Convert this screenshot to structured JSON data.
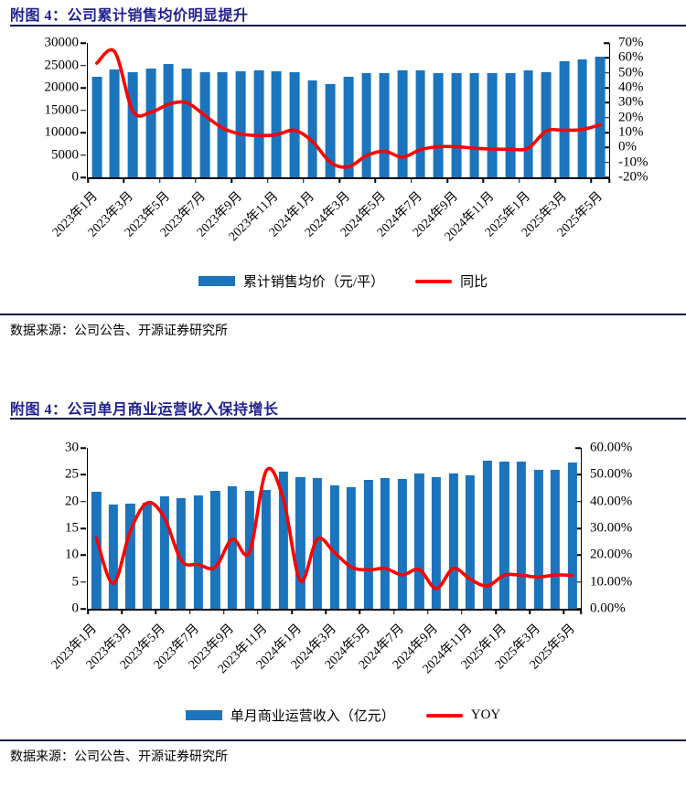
{
  "figure1": {
    "title": "附图 4：公司累计销售均价明显提升",
    "legend_bar": "累计销售均价（元/平）",
    "legend_line": "同比",
    "source": "数据来源：公司公告、开源证券研究所"
  },
  "figure2": {
    "title": "附图 4：公司单月商业运营收入保持增长",
    "legend_bar": "单月商业运营收入（亿元）",
    "legend_line": "YOY",
    "source": "数据来源：公司公告、开源证券研究所"
  },
  "colors": {
    "bar": "#1b74bc",
    "line": "#fe0000",
    "title": "#1f1f8f",
    "rule": "#14144e",
    "axis": "#000000"
  },
  "chart_data": [
    {
      "type": "bar",
      "subtype": "bar+line combo, dual axis",
      "title": "附图 4：公司累计销售均价明显提升",
      "grid": false,
      "legend_position": "bottom",
      "categories": [
        "2023年1月",
        "2023年2月",
        "2023年3月",
        "2023年4月",
        "2023年5月",
        "2023年6月",
        "2023年7月",
        "2023年8月",
        "2023年9月",
        "2023年10月",
        "2023年11月",
        "2023年12月",
        "2024年1月",
        "2024年2月",
        "2024年3月",
        "2024年4月",
        "2024年5月",
        "2024年6月",
        "2024年7月",
        "2024年8月",
        "2024年9月",
        "2024年10月",
        "2024年11月",
        "2024年12月",
        "2025年1月",
        "2025年2月",
        "2025年3月",
        "2025年4月",
        "2025年5月"
      ],
      "x_tick_labels_shown": [
        "2023年1月",
        "2023年3月",
        "2023年5月",
        "2023年7月",
        "2023年9月",
        "2023年11月",
        "2024年1月",
        "2024年3月",
        "2024年5月",
        "2024年7月",
        "2024年9月",
        "2024年11月",
        "2025年1月",
        "2025年3月",
        "2025年5月"
      ],
      "y_left": {
        "label": "累计销售均价（元/平）",
        "min": 0,
        "max": 30000,
        "step": 5000,
        "tick_labels": [
          "30000",
          "25000",
          "20000",
          "15000",
          "10000",
          "5000",
          "0"
        ]
      },
      "y_right": {
        "label": "同比",
        "min": -20,
        "max": 70,
        "step": 10,
        "tick_labels": [
          "70%",
          "60%",
          "50%",
          "40%",
          "30%",
          "20%",
          "10%",
          "0%",
          "-10%",
          "-20%"
        ]
      },
      "series": [
        {
          "name": "累计销售均价（元/平）",
          "type": "bar",
          "axis": "left",
          "values": [
            22400,
            24000,
            23450,
            24200,
            25400,
            24300,
            23400,
            23400,
            23600,
            23800,
            23600,
            23450,
            21700,
            20800,
            22400,
            23200,
            23250,
            23900,
            23800,
            23300,
            23350,
            23250,
            23300,
            23350,
            23850,
            23400,
            25900,
            26400,
            27000
          ]
        },
        {
          "name": "同比",
          "type": "line",
          "axis": "right",
          "unit": "%",
          "values": [
            56.5,
            64,
            24.5,
            23.5,
            29,
            30,
            21.5,
            13,
            9,
            8,
            8.5,
            11.5,
            4,
            -10,
            -13,
            -5.5,
            -2.5,
            -6.5,
            -1.5,
            0.5,
            0.5,
            -0.5,
            -1,
            -1.2,
            -0.5,
            11,
            11.5,
            12,
            15.2
          ]
        }
      ]
    },
    {
      "type": "bar",
      "subtype": "bar+line combo, dual axis",
      "title": "附图 4：公司单月商业运营收入保持增长",
      "grid": false,
      "legend_position": "bottom",
      "categories": [
        "2023年1月",
        "2023年2月",
        "2023年3月",
        "2023年4月",
        "2023年5月",
        "2023年6月",
        "2023年7月",
        "2023年8月",
        "2023年9月",
        "2023年10月",
        "2023年11月",
        "2023年12月",
        "2024年1月",
        "2024年2月",
        "2024年3月",
        "2024年4月",
        "2024年5月",
        "2024年6月",
        "2024年7月",
        "2024年8月",
        "2024年9月",
        "2024年10月",
        "2024年11月",
        "2024年12月",
        "2025年1月",
        "2025年2月",
        "2025年3月",
        "2025年4月",
        "2025年5月"
      ],
      "x_tick_labels_shown": [
        "2023年1月",
        "2023年3月",
        "2023年5月",
        "2023年7月",
        "2023年9月",
        "2023年11月",
        "2024年1月",
        "2024年3月",
        "2024年5月",
        "2024年7月",
        "2024年9月",
        "2024年11月",
        "2025年1月",
        "2025年3月",
        "2025年5月"
      ],
      "y_left": {
        "label": "单月商业运营收入（亿元）",
        "min": 0,
        "max": 30,
        "step": 5,
        "tick_labels": [
          "30",
          "25",
          "20",
          "15",
          "10",
          "5",
          "0"
        ]
      },
      "y_right": {
        "label": "YOY",
        "min": 0,
        "max": 60,
        "step": 10,
        "tick_labels": [
          "60.00%",
          "50.00%",
          "40.00%",
          "30.00%",
          "20.00%",
          "10.00%",
          "0.00%"
        ]
      },
      "series": [
        {
          "name": "单月商业运营收入（亿元）",
          "type": "bar",
          "axis": "left",
          "values": [
            21.9,
            19.4,
            19.6,
            19.8,
            20.9,
            20.6,
            21.2,
            22.0,
            22.8,
            22.0,
            22.2,
            25.5,
            24.5,
            24.3,
            23.0,
            22.7,
            24.1,
            24.3,
            24.2,
            25.2,
            24.6,
            25.3,
            24.9,
            27.6,
            27.5,
            27.5,
            25.9,
            25.9,
            27.2
          ]
        },
        {
          "name": "YOY",
          "type": "line",
          "axis": "right",
          "unit": "%",
          "values": [
            26.5,
            9.5,
            29,
            39.5,
            34,
            18,
            16.5,
            15.5,
            26,
            21,
            51.5,
            41,
            10.5,
            26,
            21,
            15.5,
            14.5,
            15,
            12.6,
            14.6,
            7.5,
            15,
            11,
            8.5,
            12.5,
            12.5,
            11.8,
            12.6,
            12.4
          ]
        }
      ]
    }
  ]
}
